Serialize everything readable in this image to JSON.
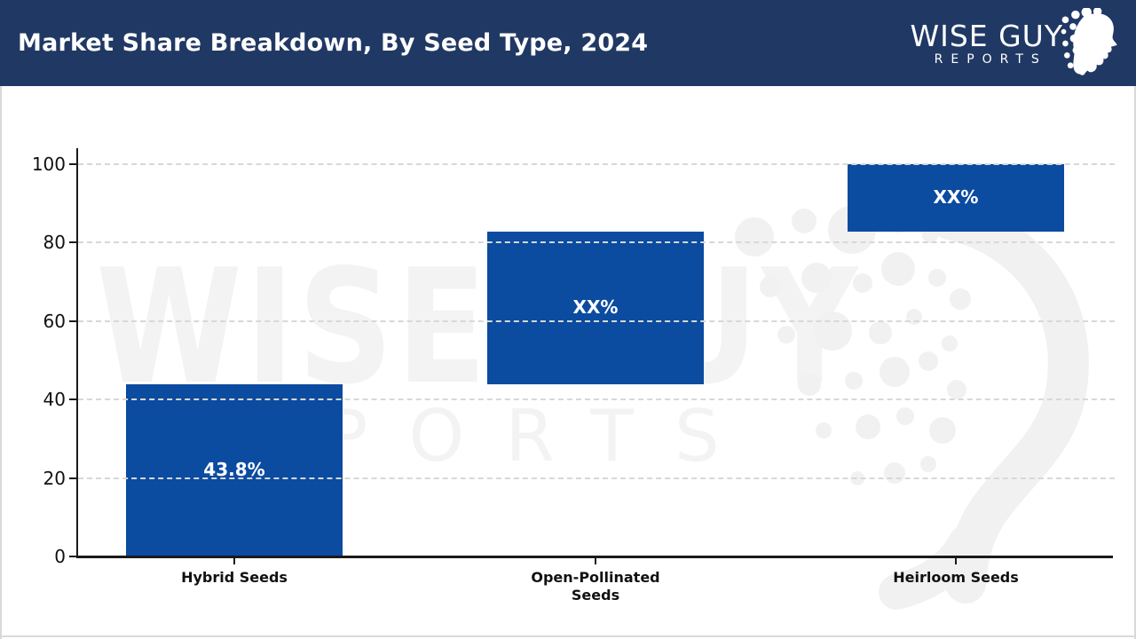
{
  "header": {
    "title": "Market Share Breakdown, By Seed Type, 2024",
    "logo": {
      "line1": "WISE GUY",
      "line2": "REPORTS"
    }
  },
  "watermark": {
    "line1": "WISE GUY",
    "line2": "REPORTS"
  },
  "chart_data": {
    "type": "waterfall-bar",
    "title": "Market Share Breakdown, By Seed Type, 2024",
    "categories": [
      "Hybrid Seeds",
      "Open-Pollinated Seeds",
      "Heirloom Seeds"
    ],
    "segments": [
      {
        "category": "Hybrid Seeds",
        "start": 0,
        "end": 43.8,
        "label": "43.8%"
      },
      {
        "category": "Open-Pollinated Seeds",
        "start": 43.8,
        "end": 82.8,
        "label": "XX%"
      },
      {
        "category": "Heirloom Seeds",
        "start": 82.8,
        "end": 100,
        "label": "XX%"
      }
    ],
    "ylim": [
      0,
      100
    ],
    "yticks": [
      0,
      20,
      40,
      60,
      80,
      100
    ],
    "xlabel": "",
    "ylabel": "",
    "grid": "horizontal-dashed",
    "legend": "none",
    "bar_color": "#0b4ba0",
    "value_label_color": "#ffffff"
  },
  "colors": {
    "header_bg": "#203864",
    "bar": "#0b4ba0",
    "grid": "#d8d8d8",
    "axis": "#1a1a1a",
    "watermark": "#f3f3f3",
    "frame": "#d9d9d9",
    "page_bg": "#ffffff"
  }
}
